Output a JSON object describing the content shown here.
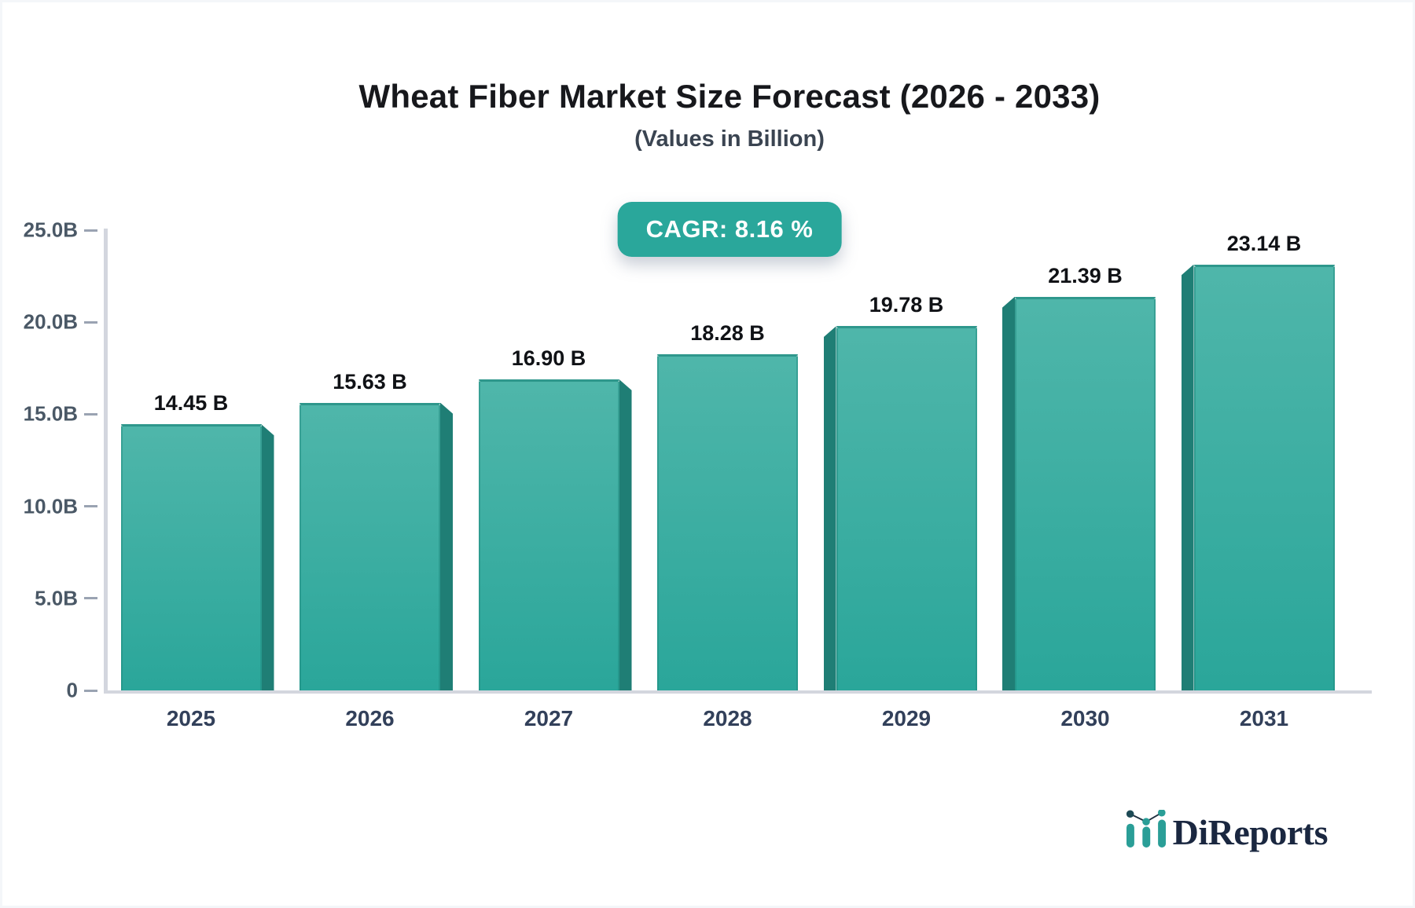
{
  "page": {
    "background": "#ffffff",
    "outer_border": "#f4f6f9"
  },
  "header": {
    "title": "Wheat Fiber Market Size Forecast (2026 - 2033)",
    "subtitle": "(Values in Billion)"
  },
  "badge": {
    "label": "CAGR: 8.16 %",
    "background": "#2aa79b",
    "text_color": "#ffffff"
  },
  "chart_data": {
    "type": "bar",
    "title": "Wheat Fiber Market Size Forecast (2026 - 2033)",
    "subtitle": "(Values in Billion)",
    "categories": [
      "2025",
      "2026",
      "2027",
      "2028",
      "2029",
      "2030",
      "2031"
    ],
    "values": [
      14.45,
      15.63,
      16.9,
      18.28,
      19.78,
      21.39,
      23.14
    ],
    "value_labels": [
      "14.45 B",
      "15.63 B",
      "16.90 B",
      "18.28 B",
      "19.78 B",
      "21.39 B",
      "23.14 B"
    ],
    "cagr_label": "CAGR: 8.16 %",
    "y_axis": {
      "min": 0,
      "max": 25,
      "ticks": [
        {
          "label": "25.0B",
          "value": 25
        },
        {
          "label": "20.0B",
          "value": 20
        },
        {
          "label": "15.0B",
          "value": 15
        },
        {
          "label": "10.0B",
          "value": 10
        },
        {
          "label": "5.0B",
          "value": 5
        },
        {
          "label": "0",
          "value": 0
        }
      ]
    },
    "grid": false,
    "legend": false,
    "style": "3d-beveled-columns, perspective toward center bar",
    "colors": {
      "bar_top": "#4fb6aa",
      "bar_bottom": "#2aa69a",
      "bar_side": "#1f7e75",
      "bar_border": "#2e978c",
      "axis": "#d3d6de",
      "tick_dash": "#9aa3b2",
      "ytick_text": "#4a5866",
      "xtick_text": "#32405a",
      "value_text": "#101216"
    }
  },
  "logo": {
    "text": "DiReports",
    "icon": "bar-chart-logo-icon",
    "text_color": "#1a2740",
    "icon_bar_color": "#2a9e97",
    "icon_dark_dot_color": "#1d4a55",
    "icon_line_color": "#203040"
  }
}
